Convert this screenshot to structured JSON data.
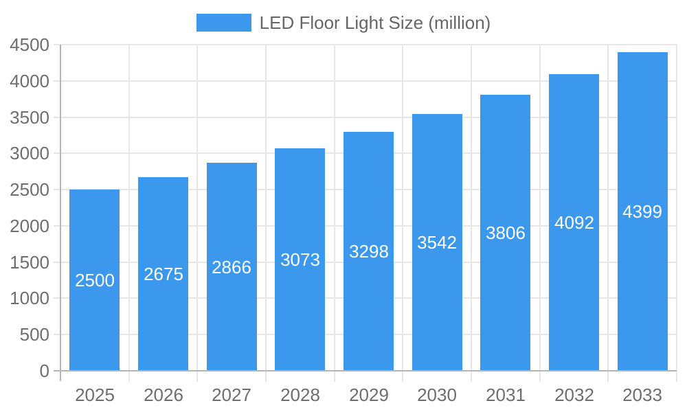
{
  "chart_data": {
    "type": "bar",
    "categories": [
      "2025",
      "2026",
      "2027",
      "2028",
      "2029",
      "2030",
      "2031",
      "2032",
      "2033"
    ],
    "series": [
      {
        "name": "LED Floor Light Size (million)",
        "values": [
          2500,
          2675,
          2866,
          3073,
          3298,
          3542,
          3806,
          4092,
          4399
        ]
      }
    ],
    "y_ticks": [
      "0",
      "500",
      "1000",
      "1500",
      "2000",
      "2500",
      "3000",
      "3500",
      "4000",
      "4500"
    ],
    "ylim": [
      0,
      4500
    ],
    "y_tick_step": 500,
    "xlabel": "",
    "ylabel": "",
    "grid": true,
    "legend_position": "top-center",
    "value_labels": "inside-center",
    "colors": {
      "bar": "#3B98EC",
      "bar_label": "#FFFFFF",
      "axis_text": "#6E6E6E",
      "legend_text": "#666666",
      "grid_line": "#E6E6E6",
      "axis_line": "#B5B5B5",
      "background": "#FFFFFF"
    }
  }
}
